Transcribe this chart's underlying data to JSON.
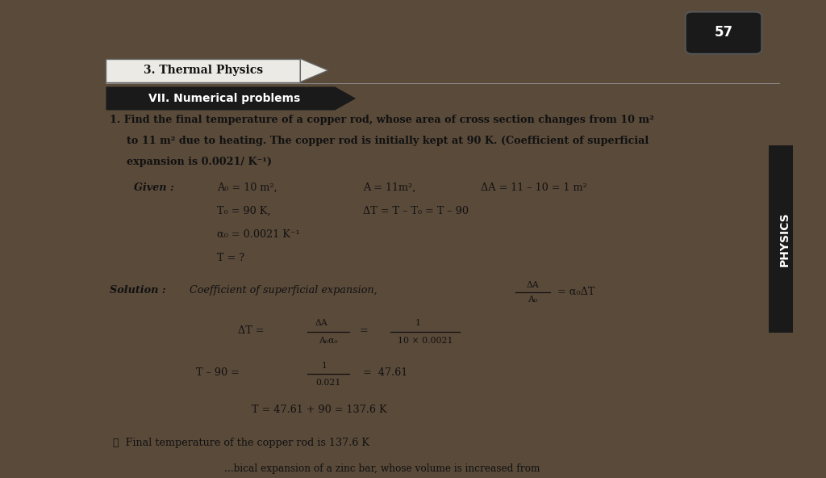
{
  "bg_color": "#5a4a3a",
  "page_bg": "#f2f0ec",
  "title_section": "3. Thermal Physics",
  "subtitle": "VII. Numerical problems",
  "page_number": "57",
  "side_label": "PHYSICS",
  "subtitle_bg": "#1a1a1a",
  "subtitle_text_color": "#ffffff",
  "title_bg": "#eceae4",
  "page_number_bg": "#1a1a1a",
  "page_number_color": "#ffffff",
  "text_color": "#111111"
}
